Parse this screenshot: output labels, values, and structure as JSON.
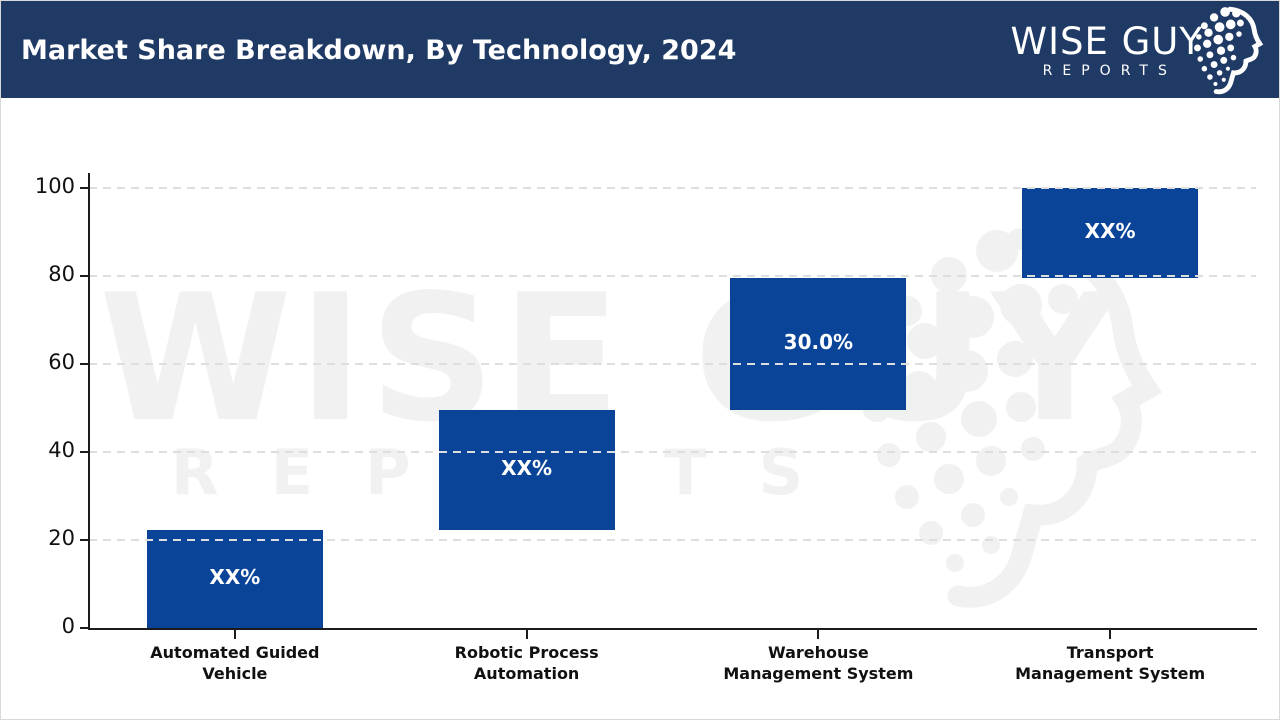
{
  "header": {
    "title": "Market Share Breakdown, By Technology, 2024",
    "logo": {
      "name": "WISE GUY",
      "tagline": "REPORTS"
    }
  },
  "watermark": {
    "text_large": "WISE GUY",
    "text_small": "REPORTS"
  },
  "colors": {
    "header_bg": "#203a66",
    "bar_blue": "#0a4499",
    "gridline": "#dedede",
    "axis": "#1c1c1c",
    "text": "#111111",
    "bar_label": "#ffffff",
    "watermark": "#f1f1f2",
    "page_border": "#d9d9d9"
  },
  "chart_data": {
    "type": "bar",
    "variant": "waterfall-floating-bars",
    "title": "Market Share Breakdown, By Technology, 2024",
    "unit": "%",
    "categories": [
      {
        "line1": "Automated Guided",
        "line2": "Vehicle"
      },
      {
        "line1": "Robotic Process",
        "line2": "Automation"
      },
      {
        "line1": "Warehouse",
        "line2": "Management System"
      },
      {
        "line1": "Transport",
        "line2": "Management System"
      }
    ],
    "segments": [
      {
        "category": "Automated Guided Vehicle",
        "start": 0,
        "end": 22.2,
        "label": "XX%"
      },
      {
        "category": "Robotic Process Automation",
        "start": 22.2,
        "end": 49.5,
        "label": "XX%"
      },
      {
        "category": "Warehouse Management System",
        "start": 49.5,
        "end": 79.5,
        "label": "30.0%"
      },
      {
        "category": "Transport Management System",
        "start": 79.5,
        "end": 100,
        "label": "XX%"
      }
    ],
    "ylim": [
      0,
      100
    ],
    "yticks": [
      0,
      20,
      40,
      60,
      80,
      100
    ],
    "xlabel": "",
    "ylabel": "",
    "grid": "horizontal-dashed-drawn-above-bars",
    "legend": "none",
    "bar_color": "#0a4499"
  }
}
